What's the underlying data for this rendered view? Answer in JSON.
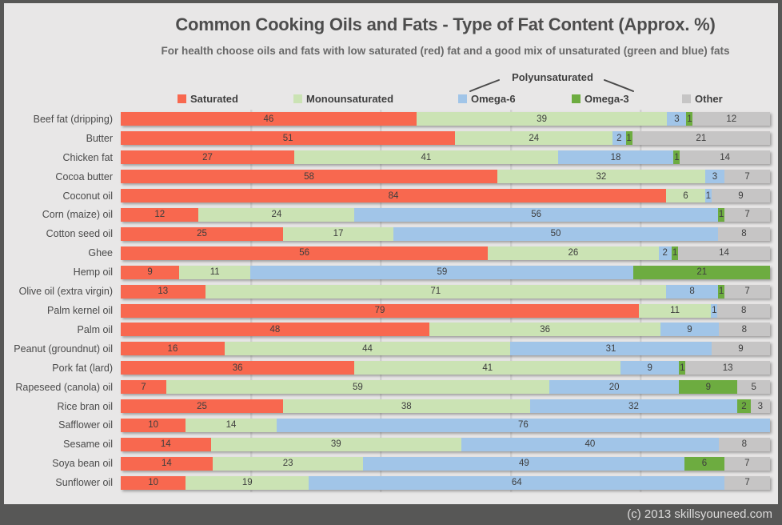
{
  "footer": {
    "text": "(c) 2013 skillsyouneed.com"
  },
  "colors": {
    "background": "#E8E7E7",
    "frame": "#575756",
    "gridline": "#D4D3D3",
    "saturated": "#F8684F",
    "monounsaturated": "#CBE3B4",
    "omega6": "#A1C5E8",
    "omega3": "#6DAC40",
    "other": "#C6C5C5"
  },
  "chart_data": {
    "type": "bar",
    "stacked": true,
    "orientation": "horizontal",
    "normalized_to_100": true,
    "title": "Common Cooking Oils and Fats - Type of Fat Content (Approx. %)",
    "subtitle": "For health choose oils and fats with low saturated (red) fat and a good mix of unsaturated (green and blue) fats",
    "annotation": "Polyunsaturated",
    "xlim": [
      0,
      100
    ],
    "grid_interval": 20,
    "legend_position": "top",
    "legend": [
      {
        "name": "Saturated",
        "color": "#F8684F"
      },
      {
        "name": "Monounsaturated",
        "color": "#CBE3B4"
      },
      {
        "name": "Omega-6",
        "color": "#A1C5E8"
      },
      {
        "name": "Omega-3",
        "color": "#6DAC40"
      },
      {
        "name": "Other",
        "color": "#C6C5C5"
      }
    ],
    "categories": [
      "Beef fat (dripping)",
      "Butter",
      "Chicken fat",
      "Cocoa butter",
      "Coconut oil",
      "Corn (maize) oil",
      "Cotton seed oil",
      "Ghee",
      "Hemp oil",
      "Olive oil (extra virgin)",
      "Palm kernel oil",
      "Palm oil",
      "Peanut (groundnut) oil",
      "Pork fat (lard)",
      "Rapeseed (canola) oil",
      "Rice bran oil",
      "Safflower oil",
      "Sesame oil",
      "Soya bean oil",
      "Sunflower oil"
    ],
    "series": [
      {
        "name": "Saturated",
        "color": "#F8684F",
        "values": [
          46,
          51,
          27,
          58,
          84,
          12,
          25,
          56,
          9,
          13,
          79,
          48,
          16,
          36,
          7,
          25,
          10,
          14,
          14,
          10
        ]
      },
      {
        "name": "Monounsaturated",
        "color": "#CBE3B4",
        "values": [
          39,
          24,
          41,
          32,
          6,
          24,
          17,
          26,
          11,
          71,
          11,
          36,
          44,
          41,
          59,
          38,
          14,
          39,
          23,
          19
        ]
      },
      {
        "name": "Omega-6",
        "color": "#A1C5E8",
        "values": [
          3,
          2,
          18,
          3,
          1,
          56,
          50,
          2,
          59,
          8,
          1,
          9,
          31,
          9,
          20,
          32,
          76,
          40,
          49,
          64
        ]
      },
      {
        "name": "Omega-3",
        "color": "#6DAC40",
        "values": [
          1,
          1,
          1,
          0,
          0,
          1,
          0,
          1,
          21,
          1,
          0,
          0,
          0,
          1,
          9,
          2,
          0,
          0,
          6,
          0
        ]
      },
      {
        "name": "Other",
        "color": "#C6C5C5",
        "values": [
          12,
          21,
          14,
          7,
          9,
          7,
          8,
          14,
          0,
          7,
          8,
          8,
          9,
          13,
          5,
          3,
          0,
          8,
          7,
          7
        ]
      }
    ]
  }
}
